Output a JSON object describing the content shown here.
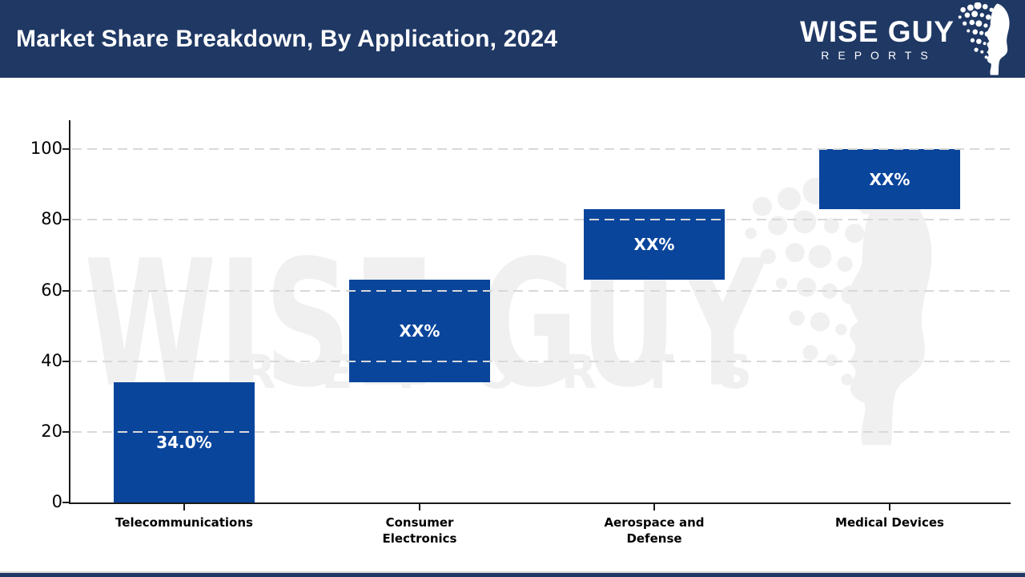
{
  "header": {
    "title": "Market Share Breakdown, By Application, 2024",
    "logo": {
      "primary": "WISE GUY",
      "secondary": "REPORTS"
    }
  },
  "watermark": {
    "primary": "WISE GUY",
    "secondary": "R E P O R T S"
  },
  "chart_data": {
    "type": "bar",
    "subtype": "floating-segment breakdown (each bar stacks on the previous, 0 to 100%)",
    "title": "Market Share Breakdown, By Application, 2024",
    "xlabel": "",
    "ylabel": "",
    "ylim": [
      0,
      108
    ],
    "yticks": [
      0,
      20,
      40,
      60,
      80,
      100
    ],
    "grid": "horizontal dashed, drawn over bars",
    "legend": "none",
    "categories": [
      "Telecommunications",
      "Consumer Electronics",
      "Aerospace and Defense",
      "Medical Devices"
    ],
    "category_lines": [
      [
        "Telecommunications"
      ],
      [
        "Consumer",
        "Electronics"
      ],
      [
        "Aerospace and",
        "Defense"
      ],
      [
        "Medical Devices"
      ]
    ],
    "segments": [
      {
        "category": "Telecommunications",
        "from": 0,
        "to": 34,
        "value_label": "34.0%"
      },
      {
        "category": "Consumer Electronics",
        "from": 34,
        "to": 63,
        "value_label": "XX%"
      },
      {
        "category": "Aerospace and Defense",
        "from": 63,
        "to": 83,
        "value_label": "XX%"
      },
      {
        "category": "Medical Devices",
        "from": 83,
        "to": 100,
        "value_label": "XX%"
      }
    ]
  },
  "colors": {
    "header_bg": "#1f3864",
    "footer_bg": "#1f3864",
    "bar": "#0a459c",
    "bar_label": "#ffffff",
    "gridline": "#d9d9d9",
    "axis": "#1a1a1a",
    "watermark": "#f0f0f0"
  }
}
